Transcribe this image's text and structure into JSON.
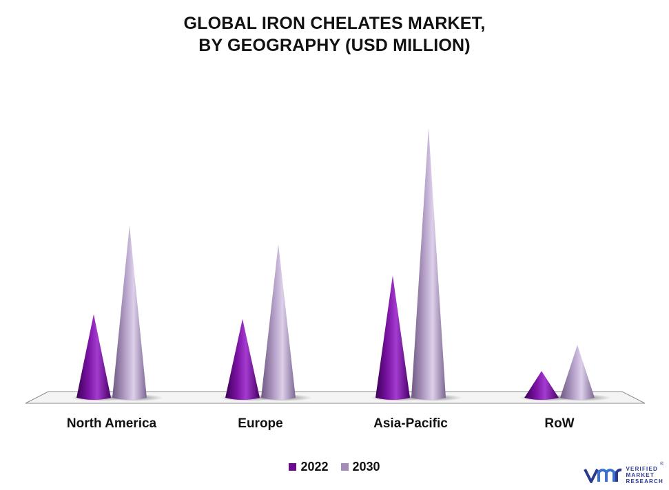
{
  "title_line1": "GLOBAL IRON CHELATES MARKET,",
  "title_line2": "BY GEOGRAPHY (USD MILLION)",
  "colors": {
    "2022": "#6a0a8e",
    "2030": "#a48cb8",
    "logo": "#2b3a8f"
  },
  "chart_data": {
    "type": "bar",
    "style": "3d-cone",
    "title": "GLOBAL IRON CHELATES MARKET, BY GEOGRAPHY (USD MILLION)",
    "categories": [
      "North America",
      "Europe",
      "Asia-Pacific",
      "RoW"
    ],
    "series": [
      {
        "name": "2022",
        "values": [
          125,
          118,
          183,
          40
        ]
      },
      {
        "name": "2030",
        "values": [
          258,
          230,
          404,
          79
        ]
      }
    ],
    "ylim": [
      0,
      410
    ],
    "grid": false,
    "axis_values_shown": false,
    "legend_position": "bottom"
  },
  "legend": {
    "item1": "2022",
    "item2": "2030"
  },
  "logo": {
    "line1": "VERIFIED",
    "line2": "MARKET",
    "line3": "RESEARCH",
    "mark": "vmr-logo",
    "reg": "®"
  }
}
